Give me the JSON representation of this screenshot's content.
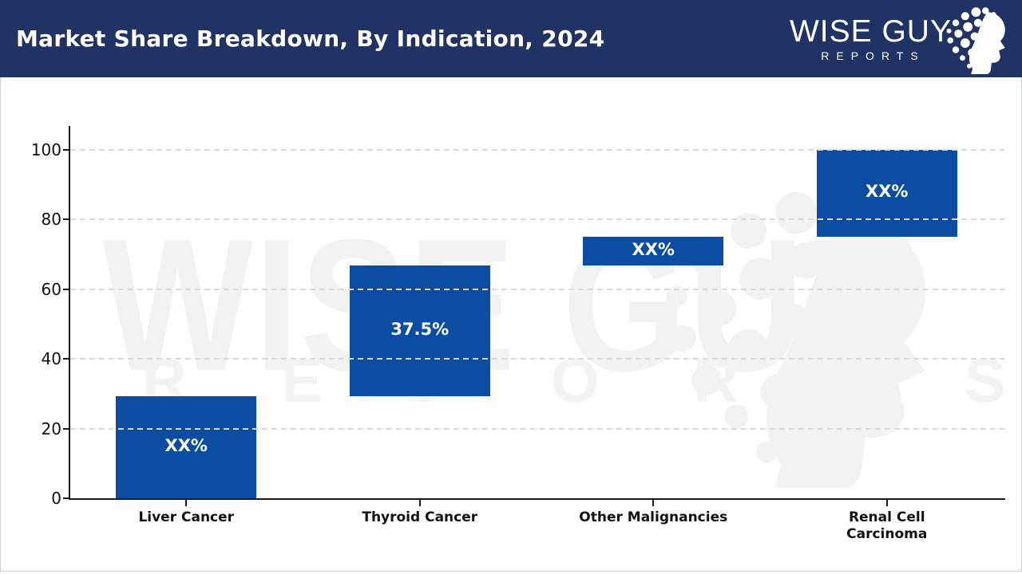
{
  "header": {
    "title": "Market Share Breakdown, By Indication, 2024",
    "bg_color": "#213365",
    "logo": {
      "line1": "WISE GUY",
      "line2": "REPORTS"
    }
  },
  "watermark": {
    "line1": "WISE GUY",
    "line2": "R E P O R T S"
  },
  "chart_data": {
    "type": "bar",
    "subtype": "floating-waterfall",
    "title": "Market Share Breakdown, By Indication, 2024",
    "xlabel": "",
    "ylabel": "",
    "ylim": [
      0,
      100
    ],
    "yticks": [
      0,
      20,
      40,
      60,
      80,
      100
    ],
    "grid": "dashed-horizontal",
    "legend": "none",
    "bar_color": "#0b4da2",
    "categories": [
      "Liver Cancer",
      "Thyroid Cancer",
      "Other Malignancies",
      "Renal Cell\nCarcinoma"
    ],
    "values": [
      29.17,
      37.5,
      8.33,
      25
    ],
    "bars": [
      {
        "category": "Liver Cancer",
        "start": 0,
        "end": 29.17,
        "label": "XX%"
      },
      {
        "category": "Thyroid Cancer",
        "start": 29.17,
        "end": 66.67,
        "label": "37.5%"
      },
      {
        "category": "Other Malignancies",
        "start": 66.67,
        "end": 75,
        "label": "XX%"
      },
      {
        "category": "Renal Cell Carcinoma",
        "start": 75,
        "end": 100,
        "label": "XX%"
      }
    ]
  }
}
